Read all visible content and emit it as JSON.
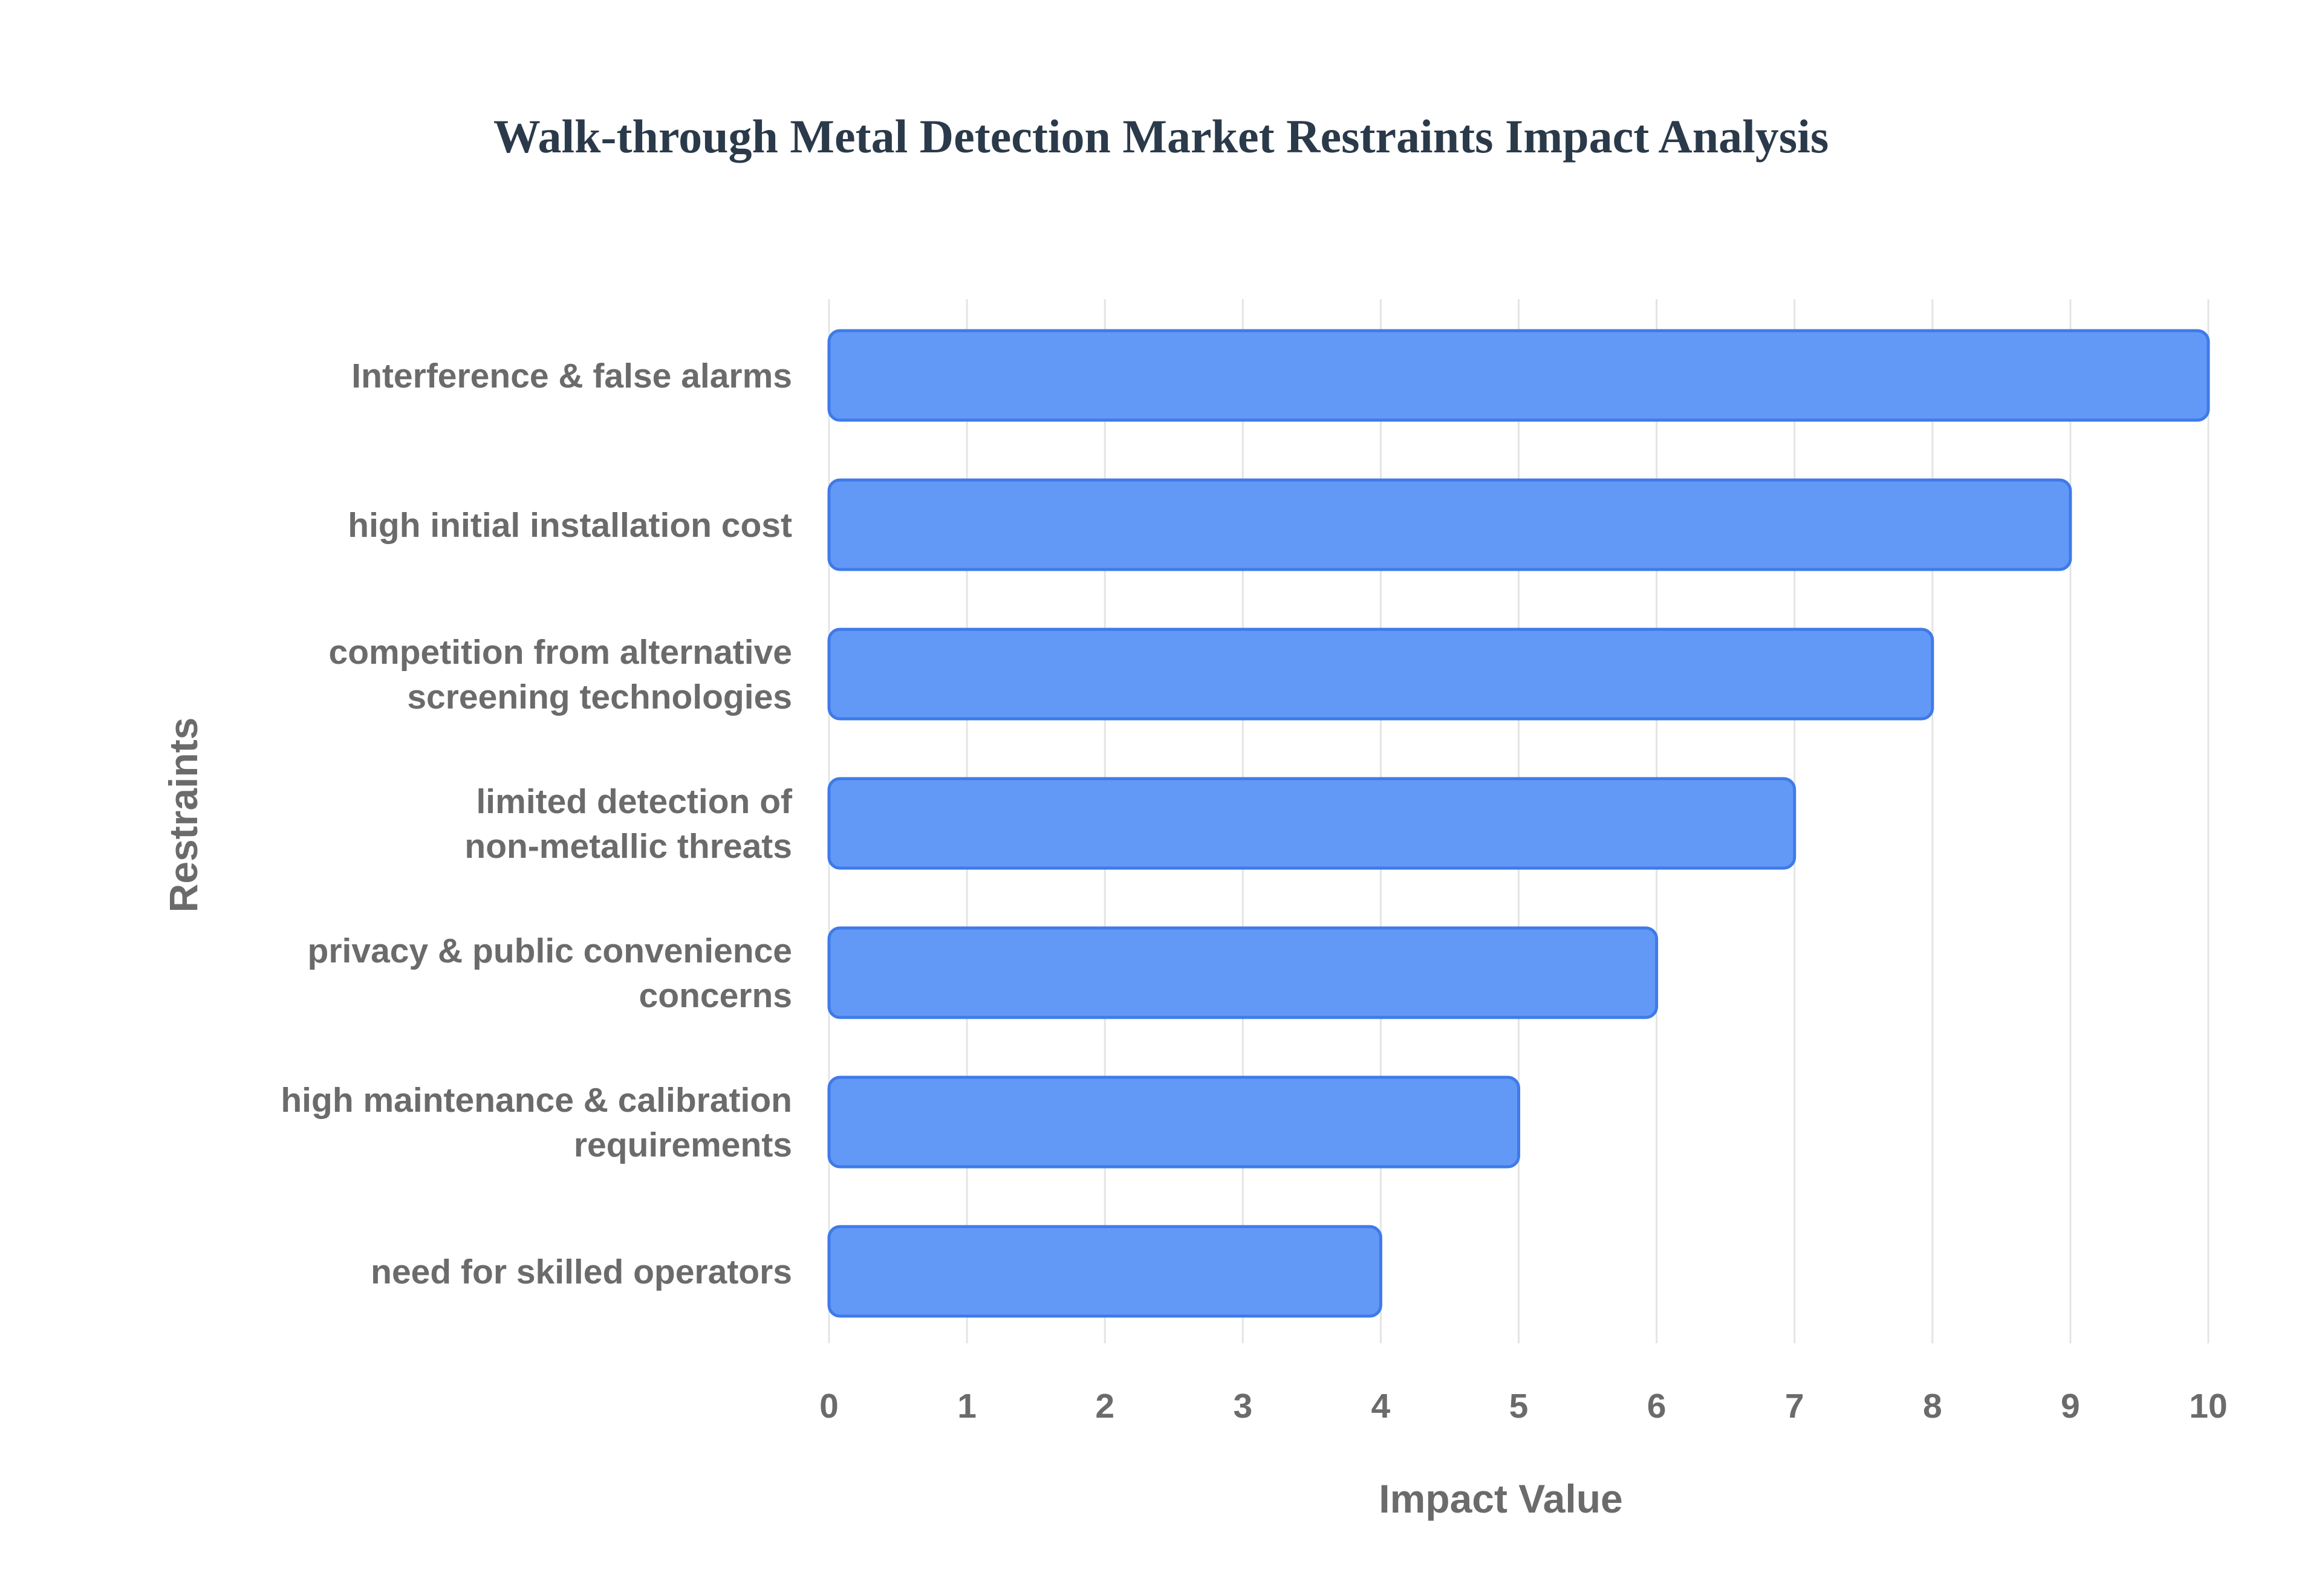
{
  "chart_data": {
    "type": "bar",
    "orientation": "horizontal",
    "title": "Walk-through Metal Detection Market Restraints Impact Analysis",
    "xlabel": "Impact Value",
    "ylabel": "Restraints",
    "xlim": [
      0,
      10
    ],
    "x_ticks": [
      "0",
      "1",
      "2",
      "3",
      "4",
      "5",
      "6",
      "7",
      "8",
      "9",
      "10"
    ],
    "grid": "vertical",
    "legend": "none",
    "colors": {
      "bar_fill": "#6399f6",
      "bar_stroke": "#3f7ae9",
      "title": "#2b3a4a",
      "text": "#6b6b6b",
      "grid": "#e4e4e4"
    },
    "categories": [
      [
        "Interference & false alarms"
      ],
      [
        "high initial installation cost"
      ],
      [
        "competition from alternative",
        "screening technologies"
      ],
      [
        "limited detection of",
        "non-metallic threats"
      ],
      [
        "privacy & public convenience",
        "concerns"
      ],
      [
        "high maintenance & calibration",
        "requirements"
      ],
      [
        "need for skilled operators"
      ]
    ],
    "values": [
      10,
      9,
      8,
      7,
      6,
      5,
      4
    ]
  }
}
